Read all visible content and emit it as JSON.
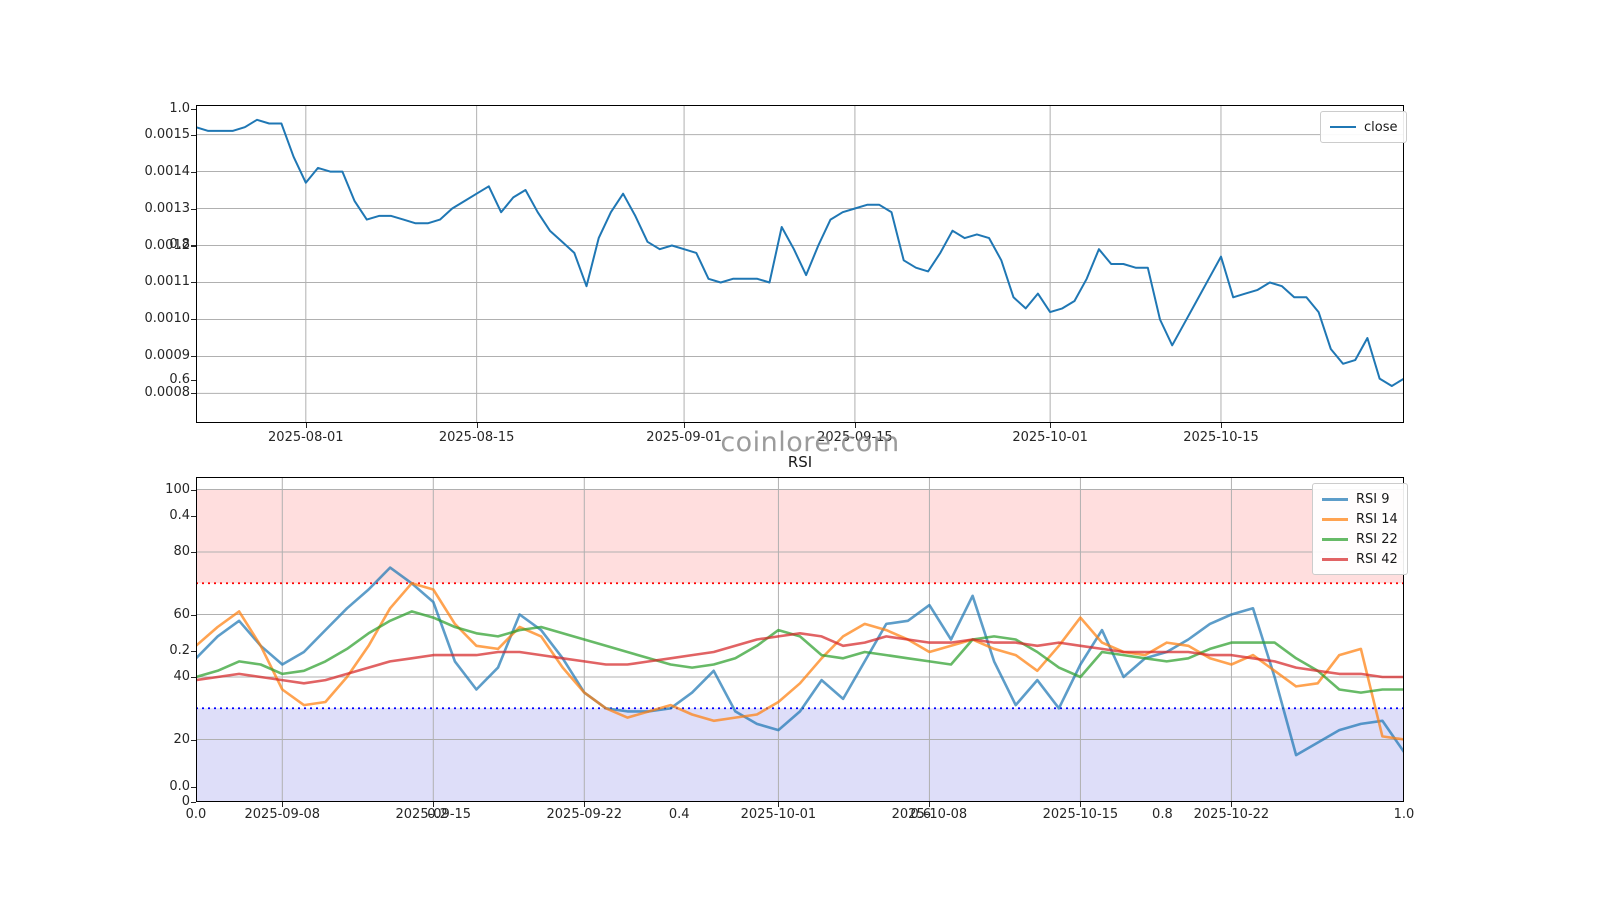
{
  "watermark": "coinlore.com",
  "base_axis": {
    "xticks": [
      "0.0",
      "0.2",
      "0.4",
      "0.6",
      "0.8",
      "1.0"
    ],
    "yticks": [
      "1.0",
      "0.8",
      "0.6",
      "0.4",
      "0.2",
      "0.0"
    ]
  },
  "chart_data": [
    {
      "type": "line",
      "title": "",
      "legend_position": "upper right",
      "grid": true,
      "ylim": [
        0.00072,
        0.00158
      ],
      "yticks": [
        {
          "value": 0.0015,
          "label": "0.0015"
        },
        {
          "value": 0.0014,
          "label": "0.0014"
        },
        {
          "value": 0.0013,
          "label": "0.0013"
        },
        {
          "value": 0.0012,
          "label": "0.0012"
        },
        {
          "value": 0.0011,
          "label": "0.0011"
        },
        {
          "value": 0.001,
          "label": "0.0010"
        },
        {
          "value": 0.0009,
          "label": "0.0009"
        },
        {
          "value": 0.0008,
          "label": "0.0008"
        }
      ],
      "xticks": [
        {
          "index": 9,
          "label": "2025-08-01"
        },
        {
          "index": 23,
          "label": "2025-08-15"
        },
        {
          "index": 40,
          "label": "2025-09-01"
        },
        {
          "index": 54,
          "label": "2025-09-15"
        },
        {
          "index": 70,
          "label": "2025-10-01"
        },
        {
          "index": 84,
          "label": "2025-10-15"
        }
      ],
      "series": [
        {
          "name": "close",
          "color": "#1f77b4",
          "width": 2,
          "opacity": 1,
          "values": [
            0.00152,
            0.00151,
            0.00151,
            0.00151,
            0.00152,
            0.00154,
            0.00153,
            0.00153,
            0.00144,
            0.00137,
            0.00141,
            0.0014,
            0.0014,
            0.00132,
            0.00127,
            0.00128,
            0.00128,
            0.00127,
            0.00126,
            0.00126,
            0.00127,
            0.0013,
            0.00132,
            0.00134,
            0.00136,
            0.00129,
            0.00133,
            0.00135,
            0.00129,
            0.00124,
            0.00121,
            0.00118,
            0.00109,
            0.00122,
            0.00129,
            0.00134,
            0.00128,
            0.00121,
            0.00119,
            0.0012,
            0.00119,
            0.00118,
            0.00111,
            0.0011,
            0.00111,
            0.00111,
            0.00111,
            0.0011,
            0.00125,
            0.00119,
            0.00112,
            0.0012,
            0.00127,
            0.00129,
            0.0013,
            0.00131,
            0.00131,
            0.00129,
            0.00116,
            0.00114,
            0.00113,
            0.00118,
            0.00124,
            0.00122,
            0.00123,
            0.00122,
            0.00116,
            0.00106,
            0.00103,
            0.00107,
            0.00102,
            0.00103,
            0.00105,
            0.00111,
            0.00119,
            0.00115,
            0.00115,
            0.00114,
            0.00114,
            0.001,
            0.00093,
            0.00099,
            0.00105,
            0.00111,
            0.00117,
            0.00106,
            0.00107,
            0.00108,
            0.0011,
            0.00109,
            0.00106,
            0.00106,
            0.00102,
            0.00092,
            0.00088,
            0.00089,
            0.00095,
            0.00084,
            0.00082,
            0.00084
          ]
        }
      ]
    },
    {
      "type": "line",
      "title": "RSI",
      "legend_position": "upper right",
      "grid": true,
      "ylim": [
        0,
        104
      ],
      "yticks": [
        {
          "value": 100,
          "label": "100"
        },
        {
          "value": 80,
          "label": "80"
        },
        {
          "value": 60,
          "label": "60"
        },
        {
          "value": 40,
          "label": "40"
        },
        {
          "value": 20,
          "label": "20"
        },
        {
          "value": 0,
          "label": "0"
        }
      ],
      "xticks": [
        {
          "index": 4,
          "label": "2025-09-08"
        },
        {
          "index": 11,
          "label": "2025-09-15"
        },
        {
          "index": 18,
          "label": "2025-09-22"
        },
        {
          "index": 27,
          "label": "2025-10-01"
        },
        {
          "index": 34,
          "label": "2025-10-08"
        },
        {
          "index": 41,
          "label": "2025-10-15"
        },
        {
          "index": 48,
          "label": "2025-10-22"
        }
      ],
      "bands": [
        {
          "from": 70,
          "to": 100,
          "color": "rgba(255,0,0,0.13)",
          "name": "overbought-zone"
        },
        {
          "from": 0,
          "to": 30,
          "color": "rgba(0,0,205,0.13)",
          "name": "oversold-zone"
        }
      ],
      "hlines": [
        {
          "y": 70,
          "color": "#ff0000",
          "name": "overbought-threshold"
        },
        {
          "y": 30,
          "color": "#0000ff",
          "name": "oversold-threshold"
        }
      ],
      "series": [
        {
          "name": "RSI 9",
          "color": "#1f77b4",
          "width": 2.6,
          "opacity": 0.72,
          "values": [
            46,
            53,
            58,
            50,
            44,
            48,
            55,
            62,
            68,
            75,
            70,
            64,
            45,
            36,
            43,
            60,
            55,
            46,
            35,
            30,
            29,
            29,
            30,
            35,
            42,
            29,
            25,
            23,
            29,
            39,
            33,
            45,
            57,
            58,
            63,
            52,
            66,
            45,
            31,
            39,
            30,
            44,
            55,
            40,
            46,
            48,
            52,
            57,
            60,
            62,
            40,
            15,
            19,
            23,
            25,
            26,
            16
          ]
        },
        {
          "name": "RSI 14",
          "color": "#ff7f0e",
          "width": 2.6,
          "opacity": 0.72,
          "values": [
            50,
            56,
            61,
            50,
            36,
            31,
            32,
            40,
            50,
            62,
            70,
            68,
            57,
            50,
            49,
            56,
            53,
            43,
            35,
            30,
            27,
            29,
            31,
            28,
            26,
            27,
            28,
            32,
            38,
            46,
            53,
            57,
            55,
            52,
            48,
            50,
            52,
            49,
            47,
            42,
            50,
            59,
            51,
            48,
            47,
            51,
            50,
            46,
            44,
            47,
            42,
            37,
            38,
            47,
            49,
            21,
            20
          ]
        },
        {
          "name": "RSI 22",
          "color": "#2ca02c",
          "width": 2.6,
          "opacity": 0.72,
          "values": [
            40,
            42,
            45,
            44,
            41,
            42,
            45,
            49,
            54,
            58,
            61,
            59,
            56,
            54,
            53,
            55,
            56,
            54,
            52,
            50,
            48,
            46,
            44,
            43,
            44,
            46,
            50,
            55,
            53,
            47,
            46,
            48,
            47,
            46,
            45,
            44,
            52,
            53,
            52,
            48,
            43,
            40,
            48,
            47,
            46,
            45,
            46,
            49,
            51,
            51,
            51,
            46,
            42,
            36,
            35,
            36,
            36
          ]
        },
        {
          "name": "RSI 42",
          "color": "#d62728",
          "width": 2.6,
          "opacity": 0.72,
          "values": [
            39,
            40,
            41,
            40,
            39,
            38,
            39,
            41,
            43,
            45,
            46,
            47,
            47,
            47,
            48,
            48,
            47,
            46,
            45,
            44,
            44,
            45,
            46,
            47,
            48,
            50,
            52,
            53,
            54,
            53,
            50,
            51,
            53,
            52,
            51,
            51,
            52,
            51,
            51,
            50,
            51,
            50,
            49,
            48,
            48,
            48,
            48,
            47,
            47,
            46,
            45,
            43,
            42,
            41,
            41,
            40,
            40
          ]
        }
      ]
    }
  ]
}
